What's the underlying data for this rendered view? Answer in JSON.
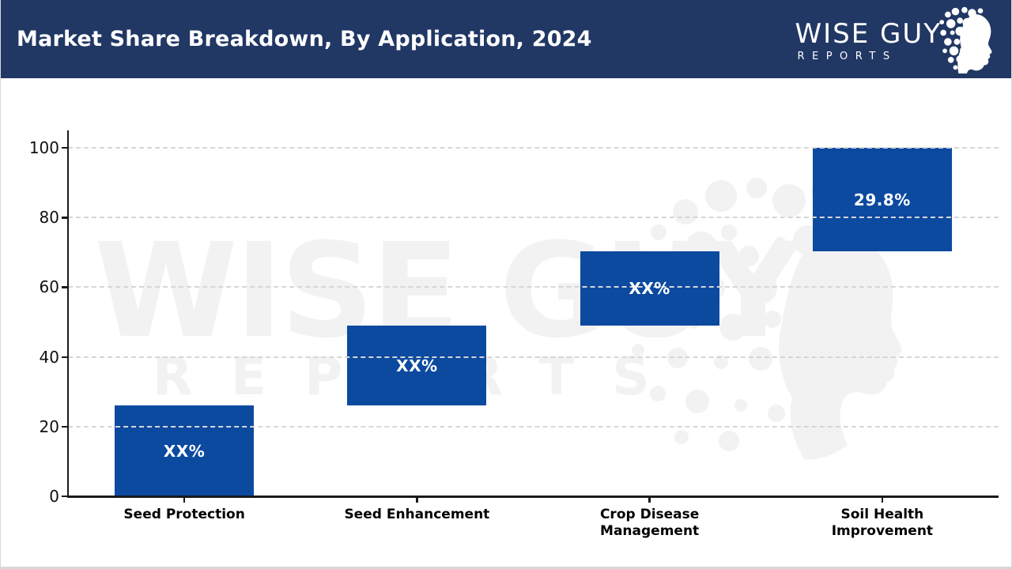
{
  "header": {
    "bg_color": "#213764",
    "title": "Market Share Breakdown, By Application, 2024",
    "logo": {
      "name": "WISE GUY",
      "tagline": "REPORTS"
    }
  },
  "watermark": {
    "line1": "WISE GUY",
    "line2": "REPORTS",
    "color": "#f2f2f3"
  },
  "chart_data": {
    "type": "bar",
    "subtype": "floating-segment-waterfall",
    "title": "Market Share Breakdown, By Application, 2024",
    "categories": [
      "Seed Protection",
      "Seed Enhancement",
      "Crop Disease Management",
      "Soil Health Improvement"
    ],
    "segments": [
      {
        "category": "Seed Protection",
        "start": 0,
        "end": 26,
        "label": "XX%"
      },
      {
        "category": "Seed Enhancement",
        "start": 26,
        "end": 49,
        "label": "XX%"
      },
      {
        "category": "Crop Disease Management",
        "start": 49,
        "end": 70.2,
        "label": "XX%"
      },
      {
        "category": "Soil Health Improvement",
        "start": 70.2,
        "end": 100,
        "label": "29.8%"
      }
    ],
    "xlabel": "",
    "ylabel": "",
    "ylim": [
      0,
      100
    ],
    "yticks": [
      0,
      20,
      40,
      60,
      80,
      100
    ],
    "grid": "horizontal-dashed",
    "legend": false,
    "bar_color": "#0c4aa0",
    "bar_label_color": "#ffffff",
    "axis_color": "#1a1a1a",
    "grid_color": "#d6d6d6"
  }
}
